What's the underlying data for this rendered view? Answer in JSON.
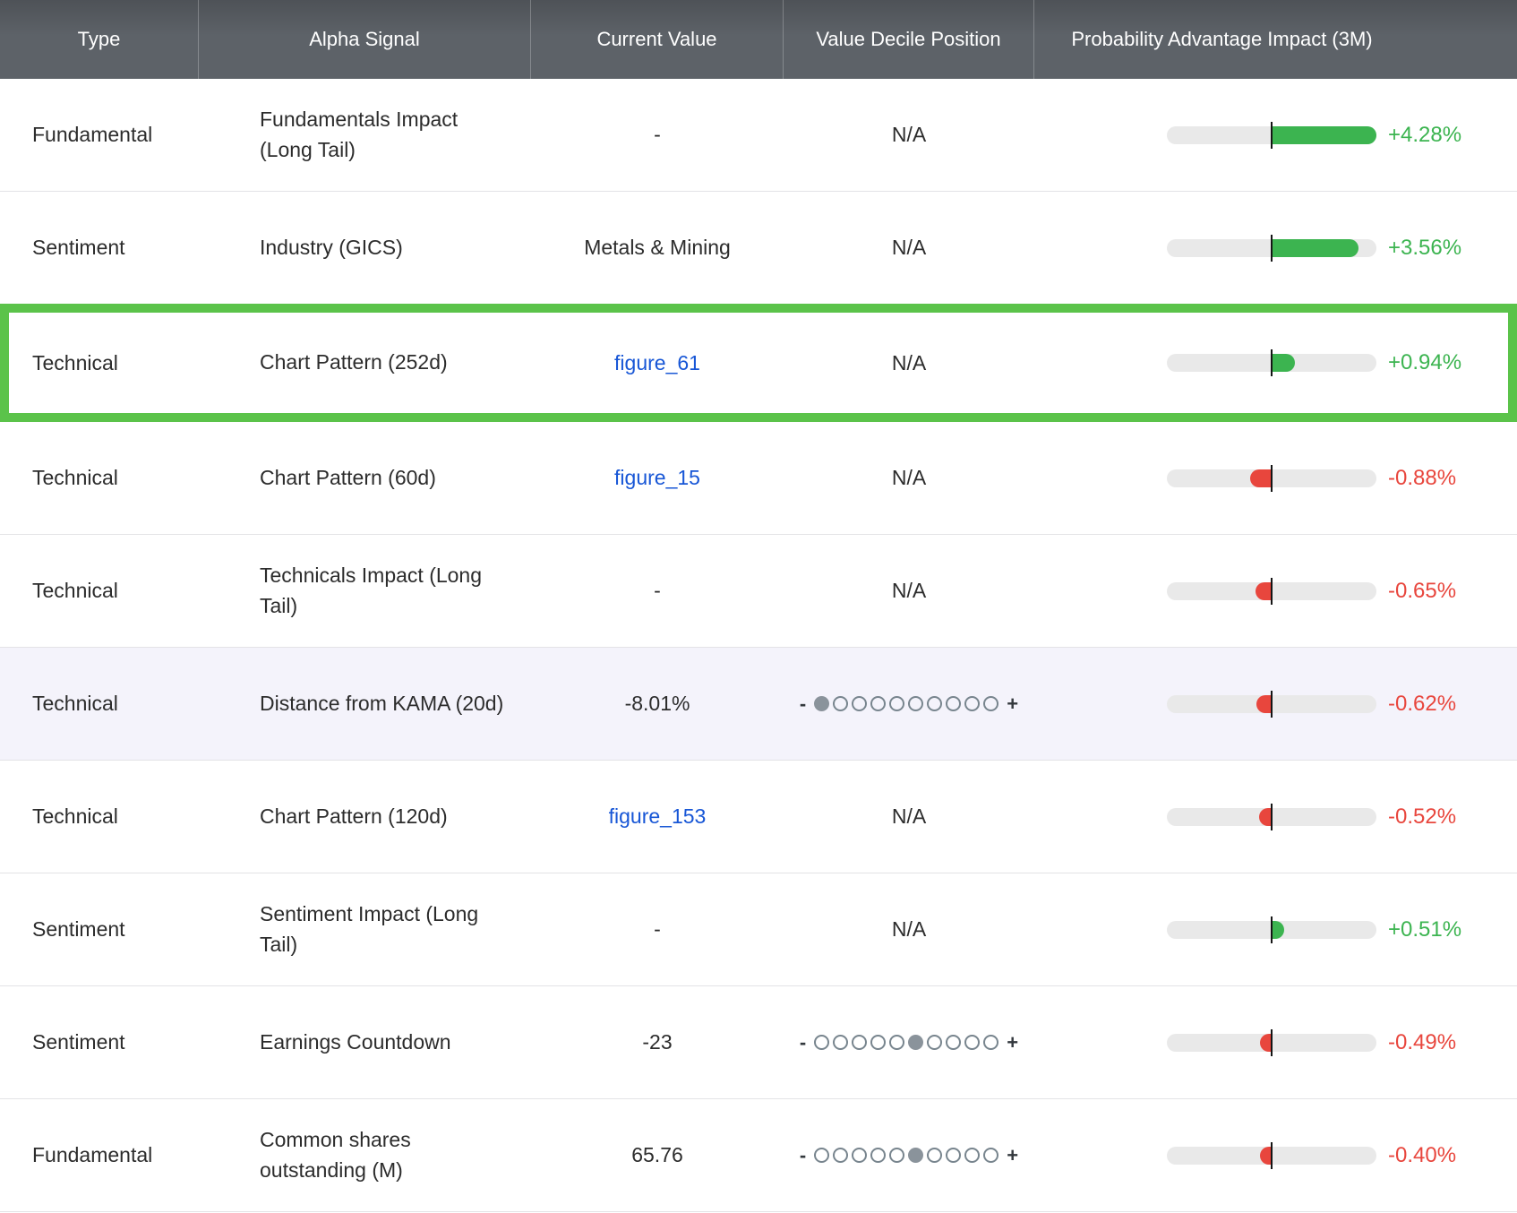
{
  "colors": {
    "positive": "#3cb450",
    "negative": "#e8463d",
    "highlight_border": "#5bc34a",
    "link": "#1756d6",
    "shaded_row_bg": "#f4f3fb",
    "track": "#e9e9e9",
    "tick": "#151515"
  },
  "table": {
    "columns": [
      "Type",
      "Alpha Signal",
      "Current Value",
      "Value Decile Position",
      "Probability Advantage Impact (3M)"
    ],
    "impact_max": 4.28,
    "na_label": "N/A",
    "decile_minus": "-",
    "decile_plus": "+",
    "decile_count": 10,
    "rows": [
      {
        "type": "Fundamental",
        "signal": "Fundamentals Impact (Long Tail)",
        "value": "-",
        "value_kind": "text",
        "decile": null,
        "impact": 4.28,
        "impact_label": "+4.28%",
        "highlight": false,
        "shaded": false
      },
      {
        "type": "Sentiment",
        "signal": "Industry (GICS)",
        "value": "Metals & Mining",
        "value_kind": "text",
        "decile": null,
        "impact": 3.56,
        "impact_label": "+3.56%",
        "highlight": false,
        "shaded": false
      },
      {
        "type": "Technical",
        "signal": "Chart Pattern (252d)",
        "value": "figure_61",
        "value_kind": "link",
        "decile": null,
        "impact": 0.94,
        "impact_label": "+0.94%",
        "highlight": true,
        "shaded": false
      },
      {
        "type": "Technical",
        "signal": "Chart Pattern (60d)",
        "value": "figure_15",
        "value_kind": "link",
        "decile": null,
        "impact": -0.88,
        "impact_label": "-0.88%",
        "highlight": false,
        "shaded": false
      },
      {
        "type": "Technical",
        "signal": "Technicals Impact (Long Tail)",
        "value": "-",
        "value_kind": "text",
        "decile": null,
        "impact": -0.65,
        "impact_label": "-0.65%",
        "highlight": false,
        "shaded": false
      },
      {
        "type": "Technical",
        "signal": "Distance from KAMA (20d)",
        "value": "-8.01%",
        "value_kind": "text",
        "decile": 1,
        "impact": -0.62,
        "impact_label": "-0.62%",
        "highlight": false,
        "shaded": true
      },
      {
        "type": "Technical",
        "signal": "Chart Pattern (120d)",
        "value": "figure_153",
        "value_kind": "link",
        "decile": null,
        "impact": -0.52,
        "impact_label": "-0.52%",
        "highlight": false,
        "shaded": false
      },
      {
        "type": "Sentiment",
        "signal": "Sentiment Impact (Long Tail)",
        "value": "-",
        "value_kind": "text",
        "decile": null,
        "impact": 0.51,
        "impact_label": "+0.51%",
        "highlight": false,
        "shaded": false
      },
      {
        "type": "Sentiment",
        "signal": "Earnings Countdown",
        "value": "-23",
        "value_kind": "text",
        "decile": 6,
        "impact": -0.49,
        "impact_label": "-0.49%",
        "highlight": false,
        "shaded": false
      },
      {
        "type": "Fundamental",
        "signal": "Common shares outstanding (M)",
        "value": "65.76",
        "value_kind": "text",
        "decile": 6,
        "impact": -0.4,
        "impact_label": "-0.40%",
        "highlight": false,
        "shaded": false
      }
    ]
  }
}
